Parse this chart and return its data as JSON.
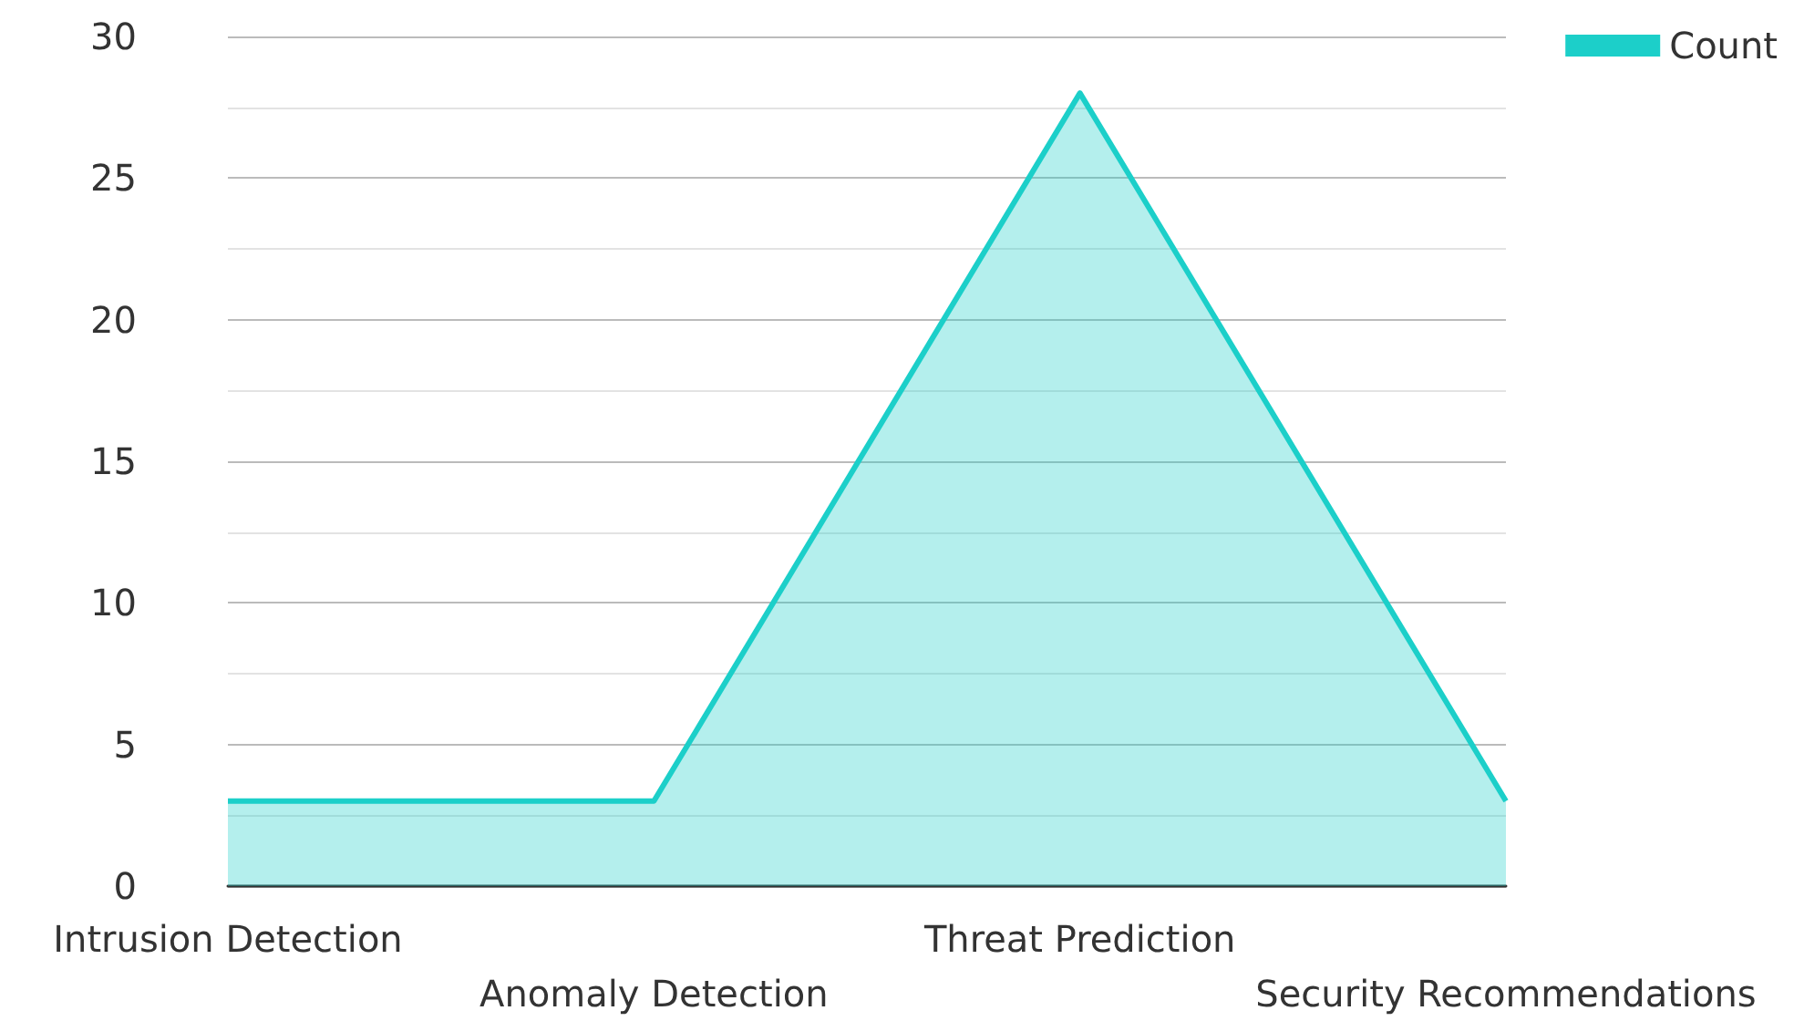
{
  "chart_data": {
    "type": "area",
    "categories": [
      "Intrusion Detection",
      "Anomaly Detection",
      "Threat Prediction",
      "Security Recommendations"
    ],
    "series": [
      {
        "name": "Count",
        "color": "#1ccfc9",
        "values": [
          3,
          3,
          28,
          3
        ]
      }
    ],
    "ylim": [
      0,
      30
    ],
    "yticks": [
      0,
      5,
      10,
      15,
      20,
      25,
      30
    ],
    "grid": "y",
    "legend": "top right",
    "marker": "none"
  }
}
